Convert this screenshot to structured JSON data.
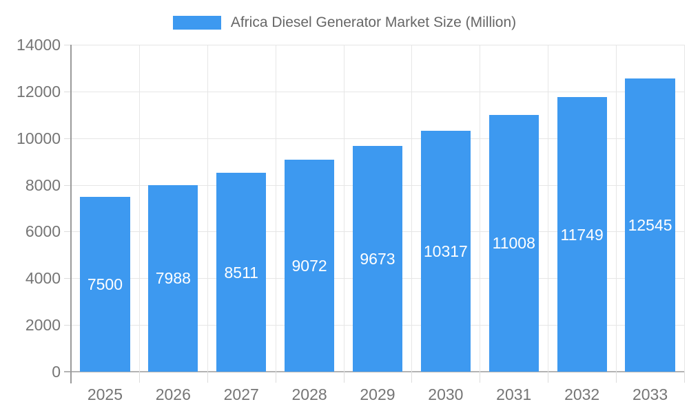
{
  "legend": {
    "title": "Africa Diesel Generator Market Size (Million)"
  },
  "chart_data": {
    "type": "bar",
    "title": "Africa Diesel Generator Market Size (Million)",
    "categories": [
      "2025",
      "2026",
      "2027",
      "2028",
      "2029",
      "2030",
      "2031",
      "2032",
      "2033"
    ],
    "values": [
      7500,
      7988,
      8511,
      9072,
      9673,
      10317,
      11008,
      11749,
      12545
    ],
    "xlabel": "",
    "ylabel": "",
    "ylim": [
      0,
      14000
    ],
    "y_ticks": [
      0,
      2000,
      4000,
      6000,
      8000,
      10000,
      12000,
      14000
    ],
    "grid": true,
    "legend_position": "top",
    "value_labels": "inside-center-white",
    "colors": {
      "bar": "#3d99f0",
      "value_label": "#ffffff",
      "axis_text": "#757575",
      "title_text": "#666666",
      "gridline": "#e6e6e6",
      "tick_mark": "#dcdcdc",
      "axis_line": "#9a9a9a",
      "baseline": "#b3b3b3",
      "background": "#ffffff"
    }
  }
}
